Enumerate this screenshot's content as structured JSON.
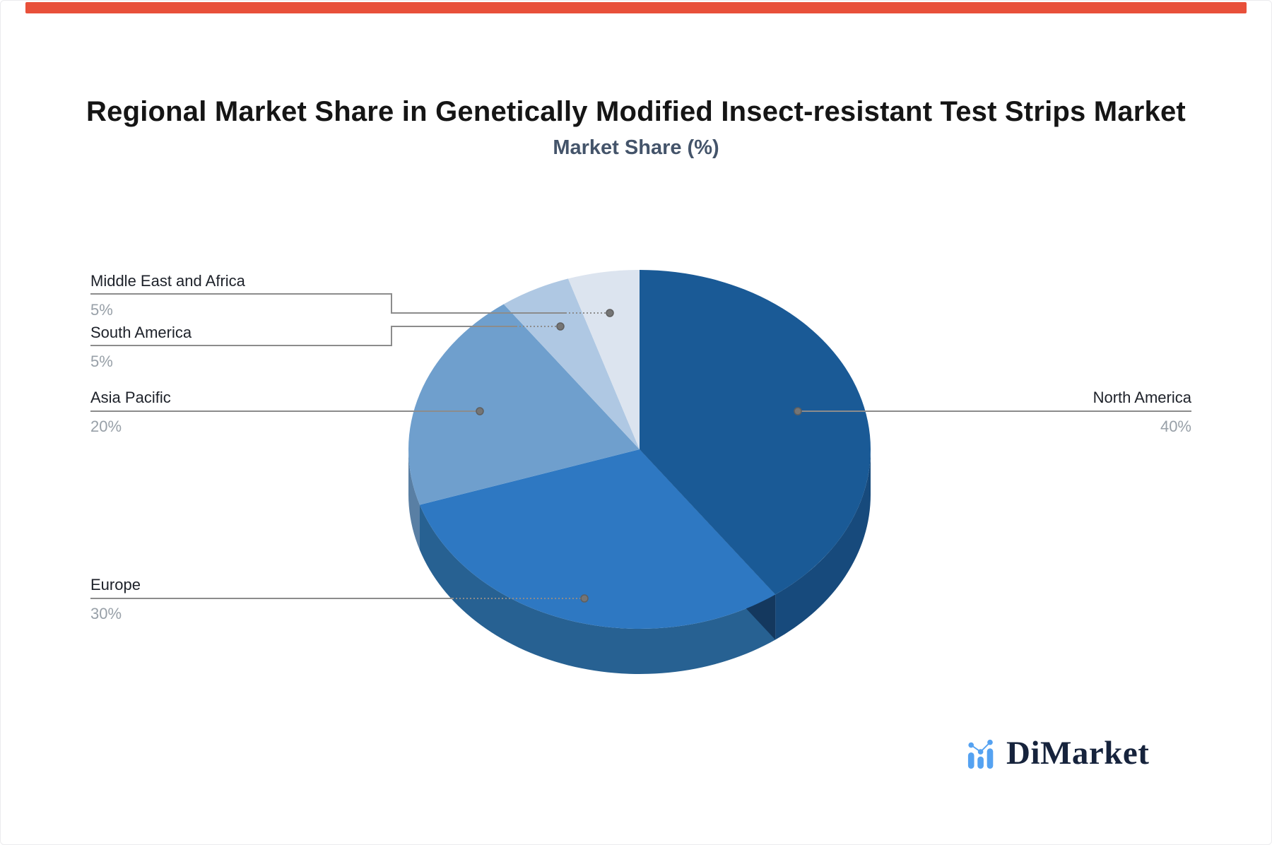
{
  "accent_bar": {
    "color": "#e8503a"
  },
  "title": "Regional Market Share in Genetically Modified Insect-resistant Test Strips Market",
  "subtitle": "Market Share (%)",
  "chart_data": {
    "type": "pie",
    "style": "3d",
    "unit": "%",
    "start_angle_deg": 0,
    "direction": "clockwise",
    "title": "Regional Market Share in Genetically Modified Insect-resistant Test Strips Market",
    "subtitle": "Market Share (%)",
    "slices": [
      {
        "label": "North America",
        "value": 40,
        "pct_text": "40%",
        "color": "#1a5a96",
        "side_color": "#174a7c",
        "wall_color": "#14385e"
      },
      {
        "label": "Europe",
        "value": 30,
        "pct_text": "30%",
        "color": "#2e78c2",
        "side_color": "#276192"
      },
      {
        "label": "Asia Pacific",
        "value": 20,
        "pct_text": "20%",
        "color": "#6f9fcd",
        "side_color": "#597fa4"
      },
      {
        "label": "South America",
        "value": 5,
        "pct_text": "5%",
        "color": "#afc8e3"
      },
      {
        "label": "Middle East and Africa",
        "value": 5,
        "pct_text": "5%",
        "color": "#dce4ef"
      }
    ]
  },
  "colors": {
    "title": "#151515",
    "subtitle": "#44546a",
    "label_text": "#1d2129",
    "pct_text": "#98a0a8",
    "leader_line": "#8c8c8c",
    "leader_dot": "#757575",
    "logo_text": "#16233c",
    "logo_icon": "#55a2f1"
  },
  "logo": {
    "text": "DiMarket",
    "icon": "bar-line-chart-icon"
  }
}
